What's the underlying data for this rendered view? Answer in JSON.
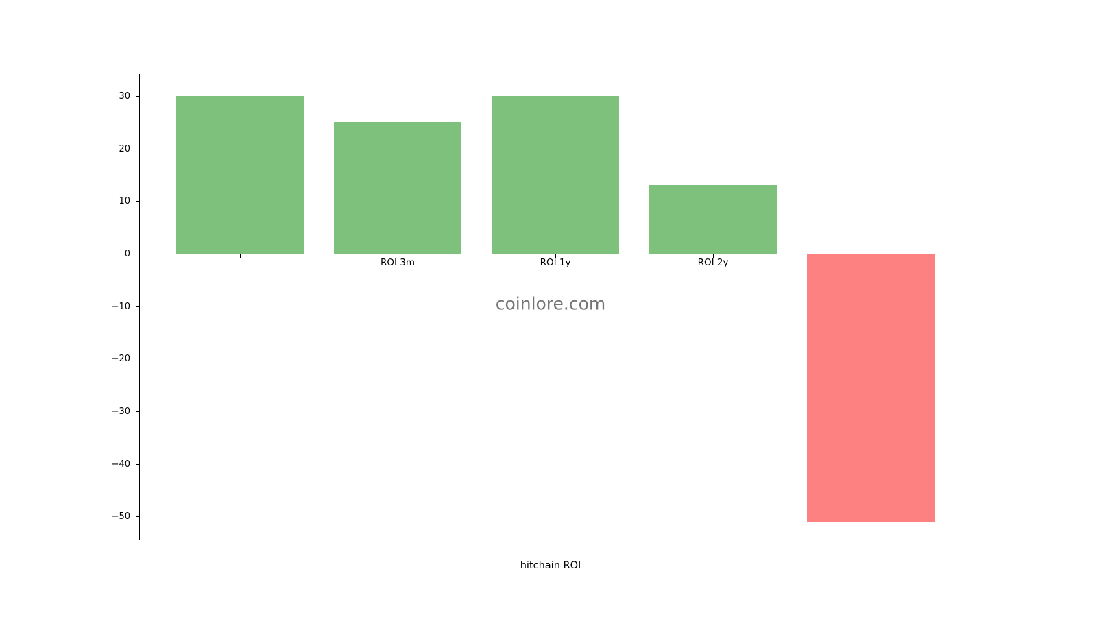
{
  "chart_data": {
    "type": "bar",
    "title": "",
    "xlabel": "hitchain ROI",
    "ylabel": "",
    "categories": [
      "",
      "ROI 3m",
      "ROI 1y",
      "ROI 2y",
      ""
    ],
    "values": [
      30,
      25,
      30,
      13,
      -51
    ],
    "positive_color": "#7dc17d",
    "negative_color": "#fe8181",
    "bar_colors": [
      "#7dc17d",
      "#7dc17d",
      "#7dc17d",
      "#7dc17d",
      "#fe8181"
    ],
    "y_ticks": [
      30,
      20,
      10,
      0,
      -10,
      -20,
      -30,
      -40,
      -50
    ],
    "y_tick_labels": [
      "30",
      "20",
      "10",
      "0",
      "−10",
      "−20",
      "−30",
      "−40",
      "−50"
    ],
    "ylim": [
      -54.6,
      34.2
    ],
    "grid": false,
    "legend": null,
    "axis_color": "#000000",
    "text_color": "#000000"
  },
  "watermark": {
    "text": "coinlore.com",
    "color": "#757575"
  }
}
